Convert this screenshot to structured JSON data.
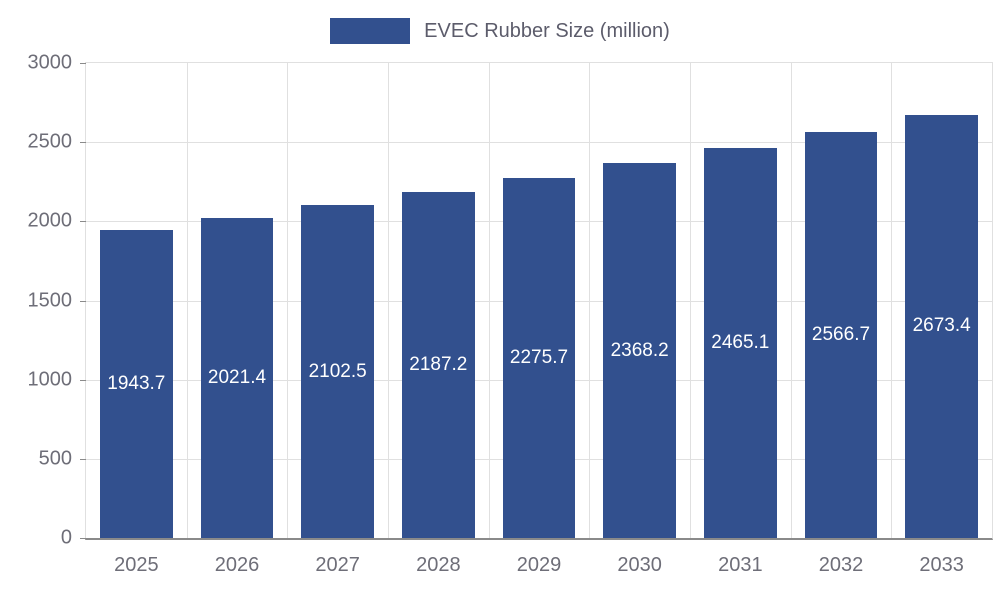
{
  "legend": {
    "label": "EVEC Rubber Size (million)"
  },
  "colors": {
    "bar": "#32508e",
    "grid": "#e0e0e0",
    "axis": "#8a8a8a",
    "tick_text": "#6e6e78",
    "legend_text": "#5c5c6b",
    "value_text": "#ffffff"
  },
  "chart_data": {
    "type": "bar",
    "title": "EVEC Rubber Size (million)",
    "categories": [
      "2025",
      "2026",
      "2027",
      "2028",
      "2029",
      "2030",
      "2031",
      "2032",
      "2033"
    ],
    "values": [
      1943.7,
      2021.4,
      2102.5,
      2187.2,
      2275.7,
      2368.2,
      2465.1,
      2566.7,
      2673.4
    ],
    "series_name": "EVEC Rubber Size (million)",
    "xlabel": "",
    "ylabel": "",
    "ylim": [
      0,
      3000
    ],
    "yticks": [
      0,
      500,
      1000,
      1500,
      2000,
      2500,
      3000
    ],
    "grid": true,
    "legend_position": "top",
    "value_labels": "inside-center"
  }
}
